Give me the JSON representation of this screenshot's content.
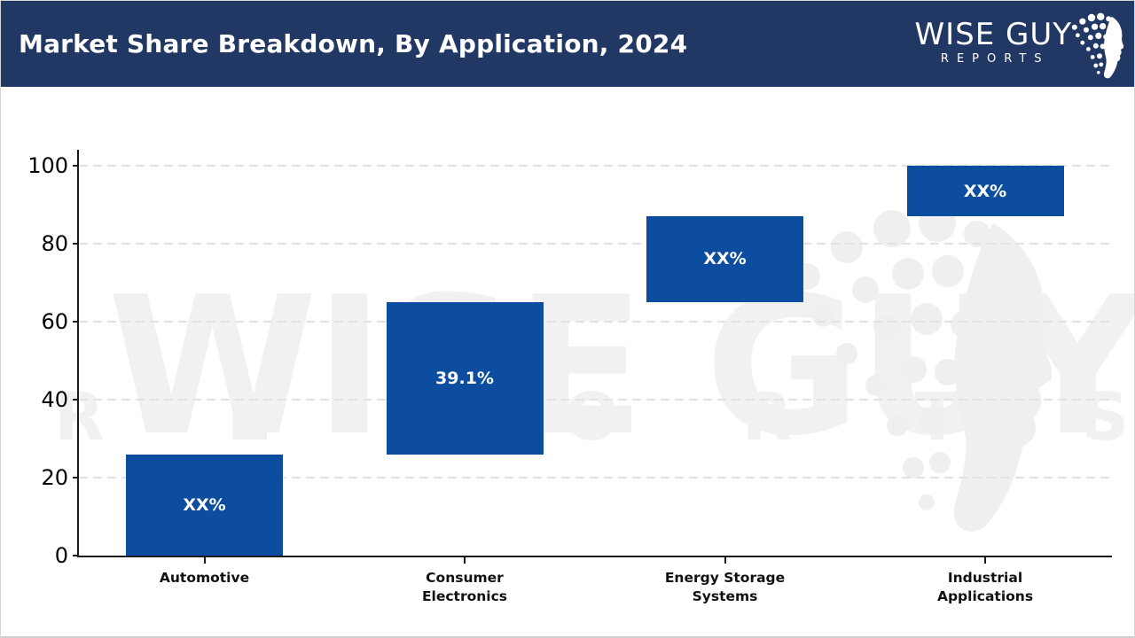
{
  "header": {
    "title": "Market Share Breakdown, By Application, 2024",
    "bg_color": "#223864",
    "logo": {
      "line1": "WISE GUY",
      "line2": "REPORTS"
    }
  },
  "watermark": {
    "line1": "WISE GUY",
    "line2": "REPORTS"
  },
  "chart_data": {
    "type": "bar",
    "subtype": "waterfall",
    "title": "Market Share Breakdown, By Application, 2024",
    "xlabel": "",
    "ylabel": "",
    "ylim": [
      0,
      100
    ],
    "yticks": [
      0,
      20,
      40,
      60,
      80,
      100
    ],
    "grid": "horizontal-dashed",
    "legend": "none",
    "bar_color": "#0d4da0",
    "value_label_color": "#ffffff",
    "categories": [
      {
        "name": "Automotive",
        "lines": [
          "Automotive"
        ]
      },
      {
        "name": "Consumer Electronics",
        "lines": [
          "Consumer",
          "Electronics"
        ]
      },
      {
        "name": "Energy Storage Systems",
        "lines": [
          "Energy Storage",
          "Systems"
        ]
      },
      {
        "name": "Industrial Applications",
        "lines": [
          "Industrial",
          "Applications"
        ]
      }
    ],
    "segments": [
      {
        "category": "Automotive",
        "start": 0,
        "end": 26,
        "value_label": "XX%"
      },
      {
        "category": "Consumer Electronics",
        "start": 26,
        "end": 65.1,
        "value_label": "39.1%"
      },
      {
        "category": "Energy Storage Systems",
        "start": 65.1,
        "end": 87,
        "value_label": "XX%"
      },
      {
        "category": "Industrial Applications",
        "start": 87,
        "end": 100,
        "value_label": "XX%"
      }
    ]
  }
}
